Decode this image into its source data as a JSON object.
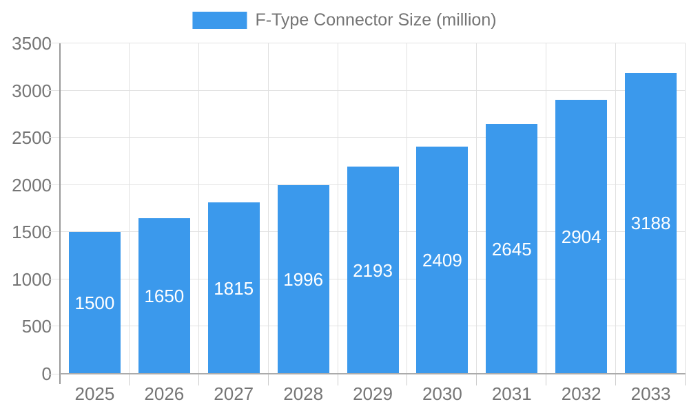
{
  "chart_data": {
    "type": "bar",
    "title": "F-Type Connector Size (million)",
    "legend": {
      "position": "top-center",
      "entries": [
        "F-Type Connector Size (million)"
      ]
    },
    "categories": [
      "2025",
      "2026",
      "2027",
      "2028",
      "2029",
      "2030",
      "2031",
      "2032",
      "2033"
    ],
    "values": [
      1500,
      1650,
      1815,
      1996,
      2193,
      2409,
      2645,
      2904,
      3188
    ],
    "xlabel": "",
    "ylabel": "",
    "ylim": [
      0,
      3500
    ],
    "y_ticks": [
      0,
      500,
      1000,
      1500,
      2000,
      2500,
      3000,
      3500
    ],
    "grid": "horizontal and vertical light gray gridlines",
    "value_labels": "white, centered inside bars",
    "colors": {
      "bar": "#3b99ec",
      "bar_value_text": "#ffffff",
      "axis_text": "#757575",
      "y_axis_line": "#999999",
      "x_axis_line": "#ababab",
      "gridline": "#e2e2e2"
    }
  }
}
